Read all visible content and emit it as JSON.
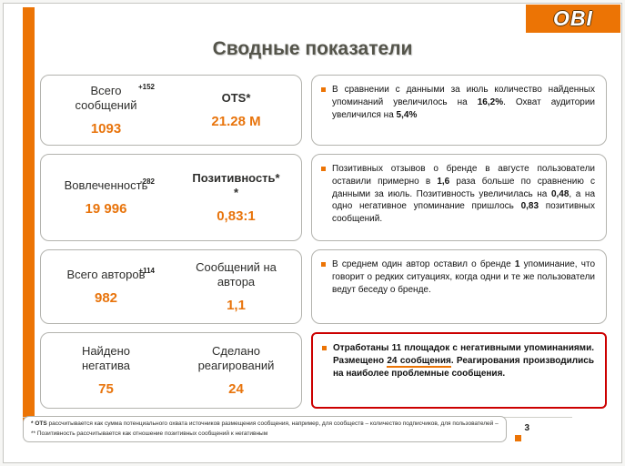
{
  "logo_text": "OBI",
  "title": "Сводные показатели",
  "page_number": "3",
  "colors": {
    "accent_orange": "#EC7405",
    "highlight_red": "#CC0000",
    "value_orange": "#E8740C"
  },
  "rows": [
    {
      "metric1": {
        "label": "Всего сообщений",
        "delta": "+152",
        "value": "1093"
      },
      "metric2": {
        "label": "OTS*",
        "value": "21.28 М"
      },
      "note": [
        {
          "t": "В сравнении с данными за июль количество найденных упоминаний увеличилось на "
        },
        {
          "t": "16,2%",
          "b": true
        },
        {
          "t": ". Охват аудитории увеличился на "
        },
        {
          "t": "5,4%",
          "b": true
        }
      ]
    },
    {
      "metric1": {
        "label": "Вовлеченность",
        "delta": "-282",
        "value": "19 996"
      },
      "metric2": {
        "label": "Позитивность*\n*",
        "value": "0,83:1"
      },
      "note": [
        {
          "t": "Позитивных отзывов о бренде в августе пользователи оставили примерно в "
        },
        {
          "t": "1,6",
          "b": true
        },
        {
          "t": " раза больше по сравнению с данными за июль. Позитивность увеличилась на "
        },
        {
          "t": "0,48",
          "b": true
        },
        {
          "t": ", а на одно негативное упоминание пришлось "
        },
        {
          "t": "0,83",
          "b": true
        },
        {
          "t": " позитивных сообщений."
        }
      ]
    },
    {
      "metric1": {
        "label": "Всего авторов",
        "delta": "+114",
        "value": "982"
      },
      "metric2": {
        "label": "Сообщений на автора",
        "value": "1,1"
      },
      "note": [
        {
          "t": "В среднем один автор оставил о бренде "
        },
        {
          "t": "1",
          "b": true
        },
        {
          "t": " упоминание, что говорит о редких ситуациях, когда одни и те же пользователи ведут беседу о бренде."
        }
      ]
    },
    {
      "metric1": {
        "label": "Найдено негатива",
        "value": "75"
      },
      "metric2": {
        "label": "Сделано реагирований",
        "value": "24"
      },
      "note": [
        {
          "t": "Отработаны ",
          "b": true
        },
        {
          "t": "11",
          "b": true
        },
        {
          "t": " площадок с негативными упоминаниями. Размещено ",
          "b": true
        },
        {
          "t": "24 сообщения",
          "b": true,
          "u": true
        },
        {
          "t": ". Реагирования производились на наиболее проблемные сообщения.",
          "b": true
        }
      ]
    }
  ],
  "footnotes": [
    [
      {
        "t": "* OTS",
        "b": true
      },
      {
        "t": " рассчитывается как сумма потенциального охвата источников размещения сообщения, например, для сообществ – количество подписчиков, для пользователей – количество их друзей"
      }
    ],
    [
      {
        "t": "** "
      },
      {
        "t": "Позитивность рассчитывается как отношение позитивных сообщений к негативным"
      }
    ]
  ]
}
